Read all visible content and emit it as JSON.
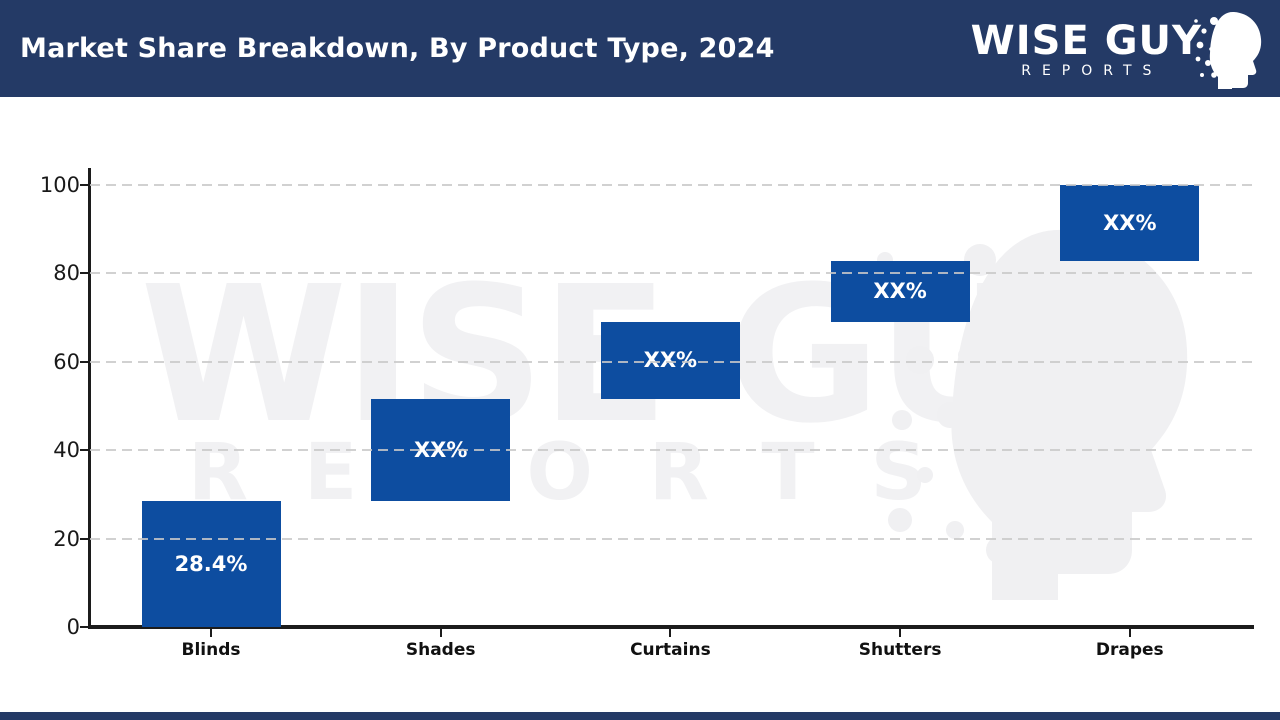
{
  "header": {
    "title": "Market Share Breakdown, By Product Type, 2024",
    "bg_color": "#243a66",
    "logo": {
      "line1": "WISE GUY",
      "line2": "REPORTS",
      "icon": "dotted-head-silhouette-icon",
      "color": "#ffffff"
    }
  },
  "watermark": {
    "line1": "WISE GUY",
    "line2": "REPORTS",
    "icon": "dotted-head-silhouette-icon",
    "color": "#f1f1f3"
  },
  "footer": {
    "bg_color": "#243a66"
  },
  "chart_data": {
    "type": "bar",
    "subtype": "waterfall",
    "title": "Market Share Breakdown, By Product Type, 2024",
    "categories": [
      "Blinds",
      "Shades",
      "Curtains",
      "Shutters",
      "Drapes"
    ],
    "segments": [
      {
        "category": "Blinds",
        "start": 0,
        "end": 28.4,
        "value": 28.4,
        "label": "28.4%"
      },
      {
        "category": "Shades",
        "start": 28.4,
        "end": 51.6,
        "value": 23.2,
        "label": "XX%"
      },
      {
        "category": "Curtains",
        "start": 51.6,
        "end": 69.1,
        "value": 17.5,
        "label": "XX%"
      },
      {
        "category": "Shutters",
        "start": 69.1,
        "end": 82.8,
        "value": 13.7,
        "label": "XX%"
      },
      {
        "category": "Drapes",
        "start": 82.8,
        "end": 100,
        "value": 17.2,
        "label": "XX%"
      }
    ],
    "yticks": [
      0,
      20,
      40,
      60,
      80,
      100
    ],
    "ylim": [
      0,
      105
    ],
    "xlabel": "",
    "ylabel": "",
    "grid": "horizontal-dashed",
    "grid_color": "#c9c9c9",
    "bar_color": "#0d4da0",
    "bar_label_color": "#ffffff",
    "axis_color": "#1c1c1c",
    "legend": "none"
  }
}
